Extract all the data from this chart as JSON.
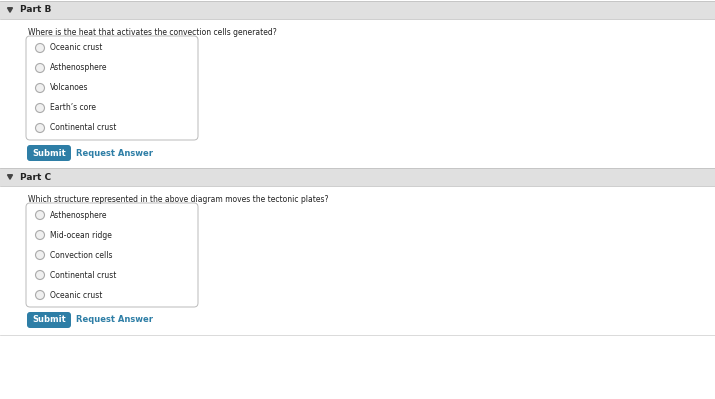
{
  "bg_color": "#f5f5f5",
  "white_color": "#ffffff",
  "part_b_label": "Part B",
  "part_c_label": "Part C",
  "part_b_question": "Where is the heat that activates the convection cells generated?",
  "part_c_question": "Which structure represented in the above diagram moves the tectonic plates?",
  "part_b_options": [
    "Oceanic crust",
    "Asthenosphere",
    "Volcanoes",
    "Earth’s core",
    "Continental crust"
  ],
  "part_c_options": [
    "Asthenosphere",
    "Mid-ocean ridge",
    "Convection cells",
    "Continental crust",
    "Oceanic crust"
  ],
  "submit_bg": "#2e7ea6",
  "submit_text_color": "#ffffff",
  "submit_label": "Submit",
  "request_answer_label": "Request Answer",
  "request_answer_color": "#2e7ea6",
  "triangle_color": "#444444",
  "header_bg": "#e0e0e0",
  "border_color": "#cccccc",
  "option_circle_color": "#aaaaaa",
  "text_color": "#222222",
  "question_color": "#222222",
  "separator_color": "#cccccc",
  "fig_width": 7.15,
  "fig_height": 3.99,
  "dpi": 100
}
